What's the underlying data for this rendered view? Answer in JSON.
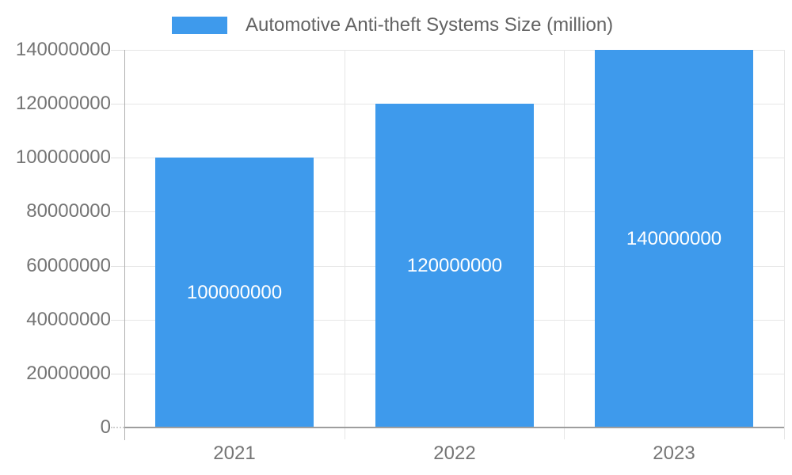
{
  "chart_data": {
    "type": "bar",
    "title": "Automotive Anti-theft Systems Size (million)",
    "legend": {
      "position": "top",
      "entries": [
        "Automotive Anti-theft Systems Size (million)"
      ]
    },
    "categories": [
      "2021",
      "2022",
      "2023"
    ],
    "series": [
      {
        "name": "Automotive Anti-theft Systems Size (million)",
        "values": [
          100000000,
          120000000,
          140000000
        ]
      }
    ],
    "bar_value_labels": [
      "100000000",
      "120000000",
      "140000000"
    ],
    "xlabel": "",
    "ylabel": "",
    "ylim": [
      0,
      140000000
    ],
    "ytick_step": 20000000,
    "yticks": [
      0,
      20000000,
      40000000,
      60000000,
      80000000,
      100000000,
      120000000,
      140000000
    ],
    "ytick_labels": [
      "0",
      "20000000",
      "40000000",
      "60000000",
      "80000000",
      "100000000",
      "120000000",
      "140000000"
    ],
    "grid": true
  },
  "colors": {
    "bar": "#3e9aec",
    "bar_label_text": "#ffffff",
    "axis_text": "#757575",
    "legend_text": "#636363",
    "gridline": "#e6e6e6",
    "axis_line": "#b0b0b0",
    "baseline": "#9e9e9e",
    "background": "#ffffff"
  }
}
